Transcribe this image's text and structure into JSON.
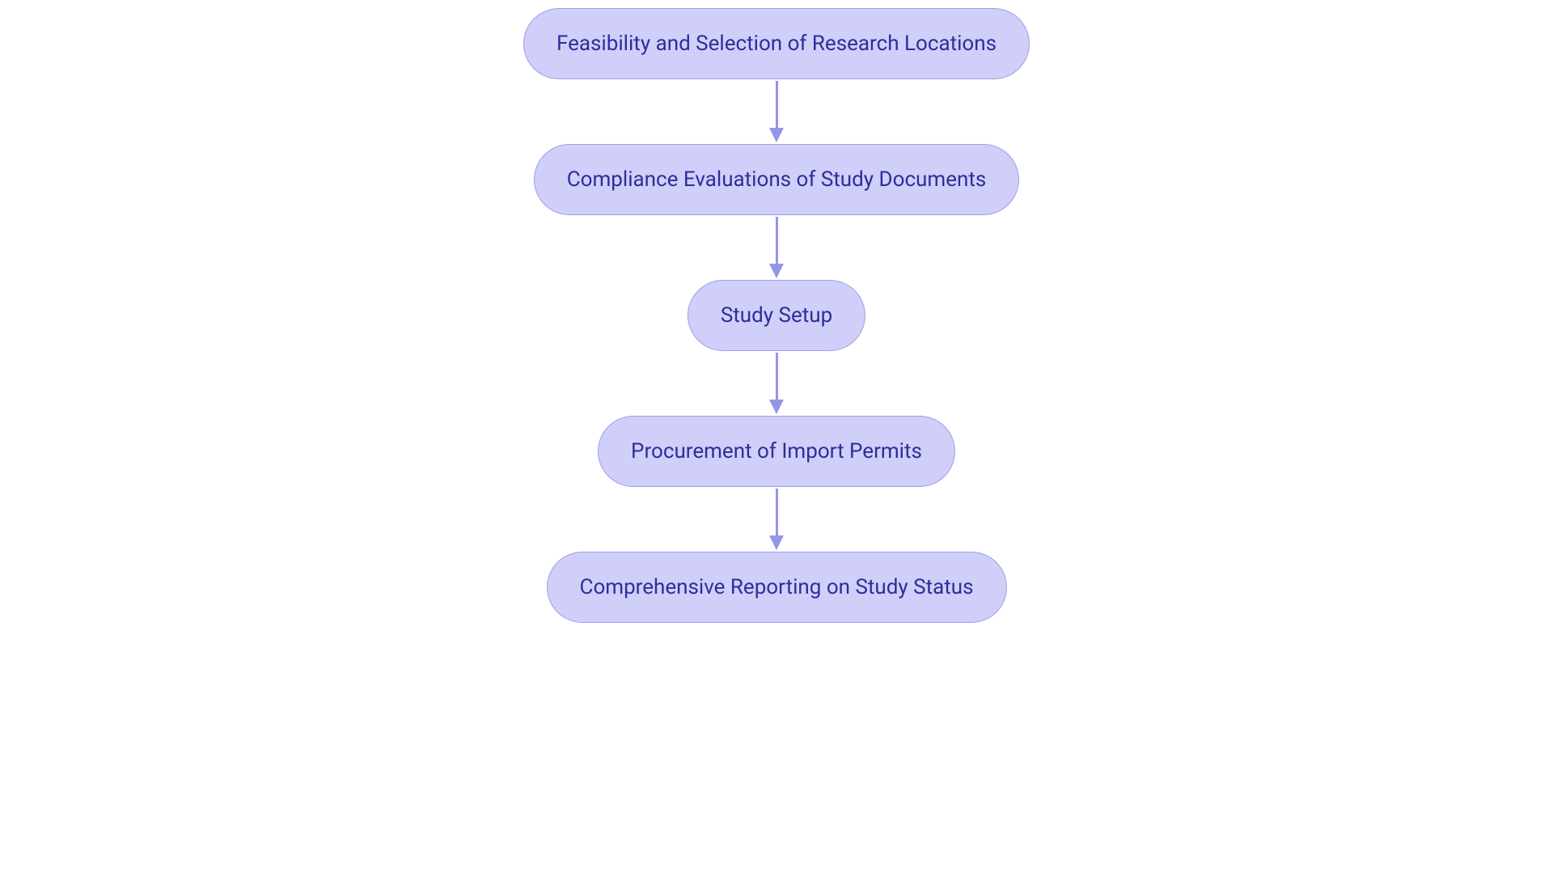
{
  "flowchart": {
    "type": "flowchart",
    "direction": "vertical",
    "background_color": "#ffffff",
    "node_fill": "#cfcffa",
    "node_border": "#9e9ee8",
    "node_text_color": "#2e2e99",
    "node_font_size": 26,
    "node_border_radius": 48,
    "arrow_color": "#9494e8",
    "arrow_width": 3,
    "arrow_gap": 80,
    "nodes": [
      {
        "id": "n1",
        "label": "Feasibility and Selection of Research Locations"
      },
      {
        "id": "n2",
        "label": "Compliance Evaluations of Study Documents"
      },
      {
        "id": "n3",
        "label": "Study Setup"
      },
      {
        "id": "n4",
        "label": "Procurement of Import Permits"
      },
      {
        "id": "n5",
        "label": "Comprehensive Reporting on Study Status"
      }
    ],
    "edges": [
      {
        "from": "n1",
        "to": "n2"
      },
      {
        "from": "n2",
        "to": "n3"
      },
      {
        "from": "n3",
        "to": "n4"
      },
      {
        "from": "n4",
        "to": "n5"
      }
    ]
  }
}
